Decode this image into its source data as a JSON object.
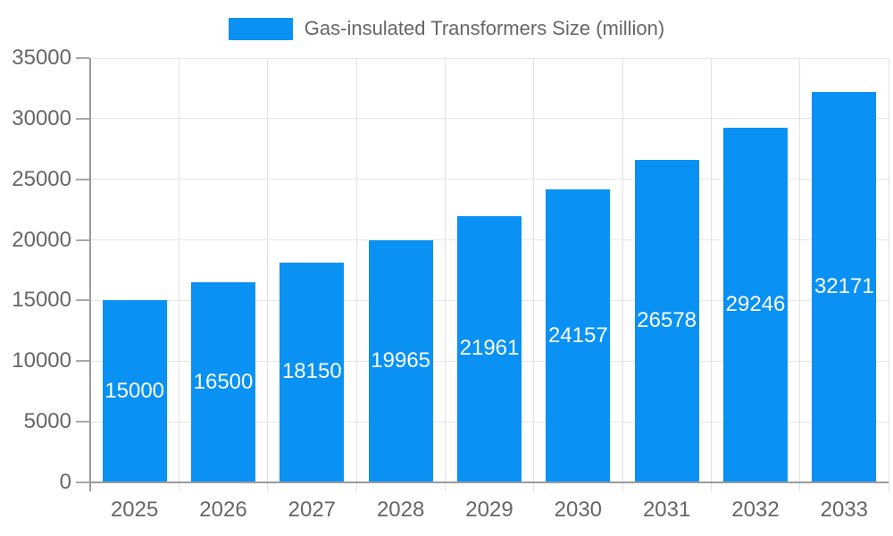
{
  "chart_data": {
    "type": "bar",
    "title": "Gas-insulated Transformers Size (million)",
    "legend_label": "Gas-insulated Transformers Size (million)",
    "legend_position": "top",
    "categories": [
      "2025",
      "2026",
      "2027",
      "2028",
      "2029",
      "2030",
      "2031",
      "2032",
      "2033"
    ],
    "series": [
      {
        "name": "Gas-insulated Transformers Size (million)",
        "values": [
          15000,
          16500,
          18150,
          19965,
          21961,
          24157,
          26578,
          29246,
          32171
        ]
      }
    ],
    "value_labels": [
      "15000",
      "16500",
      "18150",
      "19965",
      "21961",
      "24157",
      "26578",
      "29246",
      "32171"
    ],
    "xlabel": "",
    "ylabel": "",
    "ylim": [
      0,
      35000
    ],
    "ytick_step": 5000,
    "yticks": [
      0,
      5000,
      10000,
      15000,
      20000,
      25000,
      30000,
      35000
    ],
    "grid": true,
    "colors": {
      "bar": "#0991f3",
      "value_label": "#ffffff",
      "grid_h": "#e6e6e6",
      "grid_v": "#e2e2e2",
      "axis": "#9b9b9b",
      "tick_text": "#666666",
      "legend_text": "#666666",
      "background": "#ffffff"
    }
  }
}
